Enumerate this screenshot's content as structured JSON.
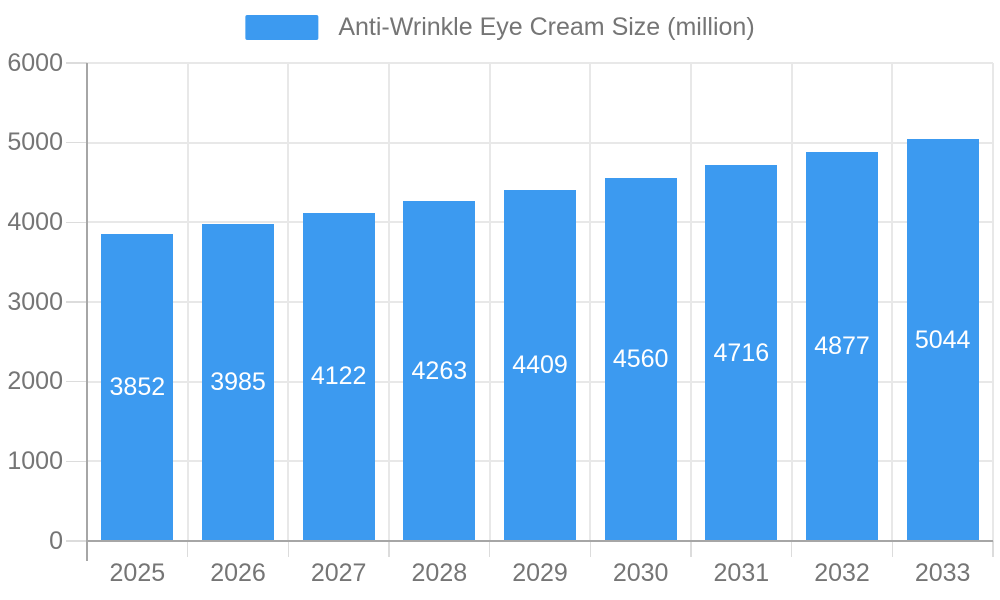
{
  "chart_data": {
    "type": "bar",
    "title": "",
    "legend": {
      "label": "Anti-Wrinkle Eye Cream Size (million)",
      "position": "top"
    },
    "categories": [
      "2025",
      "2026",
      "2027",
      "2028",
      "2029",
      "2030",
      "2031",
      "2032",
      "2033"
    ],
    "values": [
      3852,
      3985,
      4122,
      4263,
      4409,
      4560,
      4716,
      4877,
      5044
    ],
    "xlabel": "",
    "ylabel": "",
    "ylim": [
      0,
      6000
    ],
    "ytick_step": 1000,
    "ytick_labels": [
      "0",
      "1000",
      "2000",
      "3000",
      "4000",
      "5000",
      "6000"
    ],
    "grid": true,
    "value_labels_shown": true,
    "colors": {
      "bar": "#3c9af0",
      "grid": "#e8e8e8",
      "axis": "#a6a6a6",
      "tick": "#dcdcdc",
      "label_text": "#757575",
      "value_text": "#ffffff",
      "background": "#ffffff"
    }
  }
}
